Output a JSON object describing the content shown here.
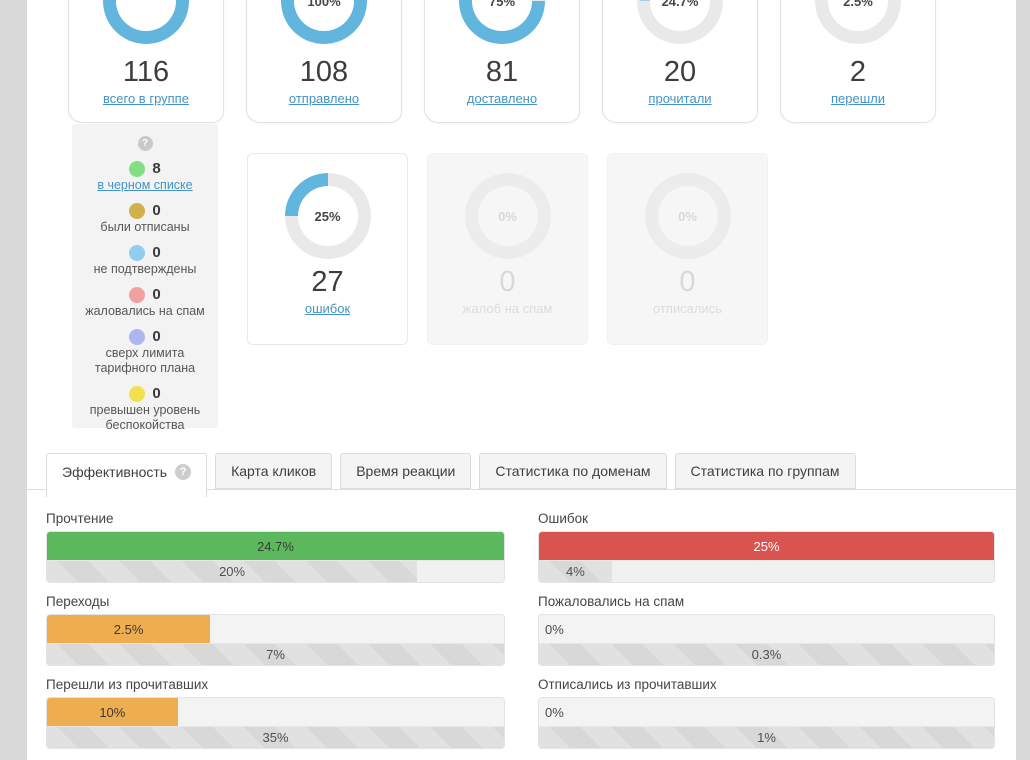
{
  "icons": {
    "question_glyph": "?"
  },
  "colors": {
    "donut_fill": "#62b5dc",
    "donut_track": "#e9e9e9",
    "donut_disabled": "#ececec",
    "link": "#4293c7",
    "green": "#5cb85c",
    "orange": "#eead4e",
    "red": "#d9534f",
    "side_strip": "#d9d9d9"
  },
  "top_cards": [
    {
      "value": "116",
      "link": "всего в группе",
      "pct": 100,
      "pct_label": ""
    },
    {
      "value": "108",
      "link": "отправлено",
      "pct": 100,
      "pct_label": "100%"
    },
    {
      "value": "81",
      "link": "доставлено",
      "pct": 75,
      "pct_label": "75%"
    },
    {
      "value": "20",
      "link": "прочитали",
      "pct": 24.7,
      "pct_label": "24.7%"
    },
    {
      "value": "2",
      "link": "перешли",
      "pct": 2.5,
      "pct_label": "2.5%"
    }
  ],
  "summary_panel": {
    "items": [
      {
        "dot_color": "#82e082",
        "count": "8",
        "label": "в черном списке",
        "is_link": true
      },
      {
        "dot_color": "#d2b04c",
        "count": "0",
        "label": "были отписаны"
      },
      {
        "dot_color": "#90cdf0",
        "count": "0",
        "label": "не подтверждены"
      },
      {
        "dot_color": "#f2a0a0",
        "count": "0",
        "label": "жаловались на спам"
      },
      {
        "dot_color": "#aeb6f2",
        "count": "0",
        "label": "сверх лимита тарифного плана"
      },
      {
        "dot_color": "#f2e04e",
        "count": "0",
        "label": "превышен уровень беспокойства"
      }
    ]
  },
  "second_cards": [
    {
      "value": "27",
      "link": "ошибок",
      "pct": 25,
      "pct_label": "25%",
      "state": "active"
    },
    {
      "value": "0",
      "link": "жалоб на спам",
      "pct": 0,
      "pct_label": "0%",
      "state": "disabled"
    },
    {
      "value": "0",
      "link": "отписались",
      "pct": 0,
      "pct_label": "0%",
      "state": "disabled"
    }
  ],
  "tabs": [
    {
      "label": "Эффективность",
      "active": true,
      "has_help": true
    },
    {
      "label": "Карта кликов"
    },
    {
      "label": "Время реакции"
    },
    {
      "label": "Статистика по доменам"
    },
    {
      "label": "Статистика по группам"
    }
  ],
  "metrics": {
    "left": [
      {
        "label": "Прочтение",
        "value_text": "24.7%",
        "value_width": "100%",
        "bar_color": "#5cb85c",
        "value_text_color": "#3a3a3a",
        "avg_text": "20%",
        "avg_width": "81%"
      },
      {
        "label": "Переходы",
        "value_text": "2.5%",
        "value_width": "35.7%",
        "bar_color": "#eead4e",
        "value_text_color": "#3a3a3a",
        "avg_text": "7%",
        "avg_width": "100%"
      },
      {
        "label": "Перешли из прочитавших",
        "value_text": "10%",
        "value_width": "28.6%",
        "bar_color": "#eead4e",
        "value_text_color": "#3a3a3a",
        "avg_text": "35%",
        "avg_width": "100%"
      }
    ],
    "right": [
      {
        "label": "Ошибок",
        "value_text": "25%",
        "value_width": "100%",
        "bar_color": "#d9534f",
        "value_text_color": "#ffffff",
        "avg_text": "4%",
        "avg_width": "16%"
      },
      {
        "label": "Пожаловались на спам",
        "value_text": "0%",
        "value_width": "0%",
        "bar_color": "none",
        "value_text_color": "#4a4a4a",
        "avg_text": "0.3%",
        "avg_width": "100%"
      },
      {
        "label": "Отписались из прочитавших",
        "value_text": "0%",
        "value_width": "0%",
        "bar_color": "none",
        "value_text_color": "#4a4a4a",
        "avg_text": "1%",
        "avg_width": "100%"
      }
    ]
  }
}
